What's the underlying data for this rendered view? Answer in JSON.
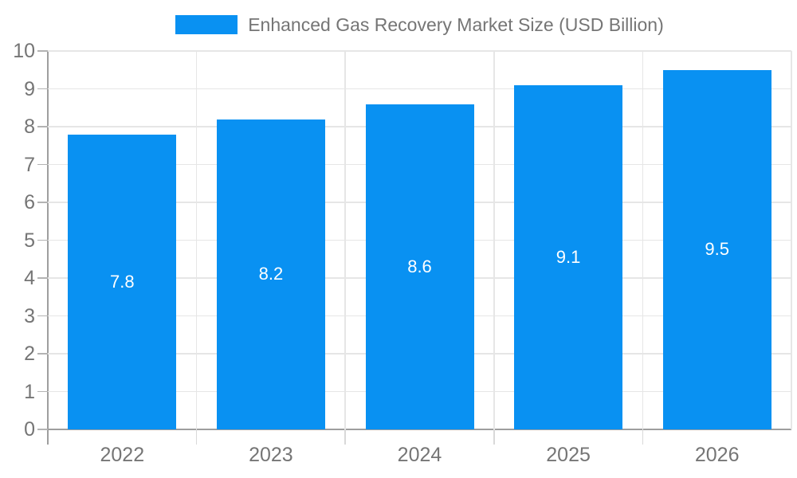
{
  "chart_data": {
    "type": "bar",
    "title": "Enhanced Gas Recovery Market Size (USD Billion)",
    "categories": [
      "2022",
      "2023",
      "2024",
      "2025",
      "2026"
    ],
    "values": [
      7.8,
      8.2,
      8.6,
      9.1,
      9.5
    ],
    "value_labels": [
      "7.8",
      "8.2",
      "8.6",
      "9.1",
      "9.5"
    ],
    "xlabel": "",
    "ylabel": "",
    "ylim": [
      0,
      10
    ],
    "y_ticks": [
      0,
      1,
      2,
      3,
      4,
      5,
      6,
      7,
      8,
      9,
      10
    ],
    "grid": true,
    "legend_position": "top",
    "colors": {
      "bar": "#0991f2",
      "grid": "#e6e6e6",
      "axis": "#9e9e9e",
      "tick_text": "#757575",
      "value_text": "#ffffff",
      "legend_text": "#757575"
    }
  }
}
